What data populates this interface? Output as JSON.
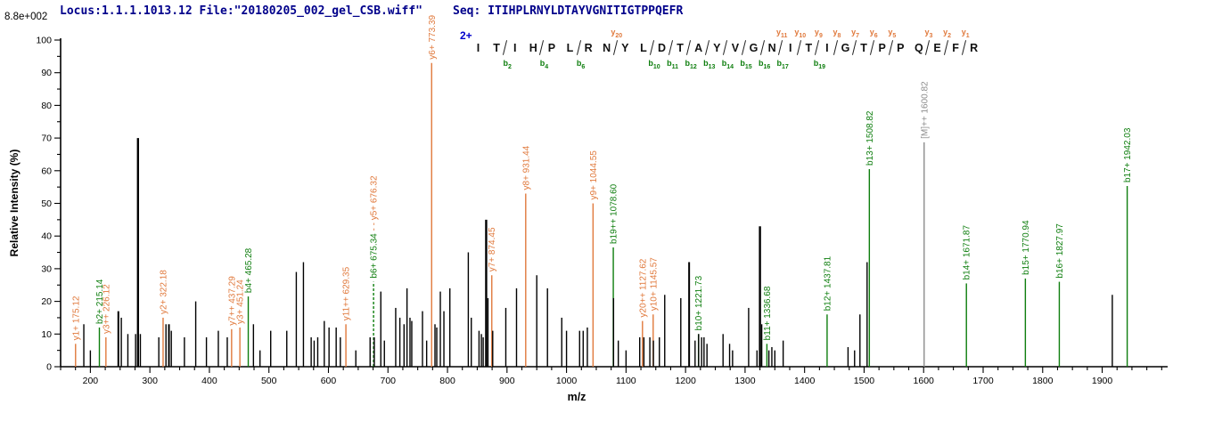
{
  "header": {
    "max_intensity": "8.8e+002",
    "locus_line": "Locus:1.1.1.1013.12 File:\"20180205_002_gel_CSB.wiff\"",
    "seq_label": "Seq:",
    "seq_value": "ITIHPLRNYLDTAYVGNITIGTPPQEFR"
  },
  "colors": {
    "y_ion": "#E0793C",
    "b_ion": "#0E7E0E",
    "precursor": "#8C8C8C",
    "peak": "#000000",
    "header_text": "#00008B",
    "charge_text": "#0000CC"
  },
  "sequence_panel": {
    "charge_label": "2+",
    "residues": [
      "I",
      "T",
      "I",
      "H",
      "P",
      "L",
      "R",
      "N",
      "Y",
      "L",
      "D",
      "T",
      "A",
      "Y",
      "V",
      "G",
      "N",
      "I",
      "T",
      "I",
      "G",
      "T",
      "P",
      "P",
      "Q",
      "E",
      "F",
      "R"
    ],
    "dividers": [
      {
        "after": 2,
        "b": "2"
      },
      {
        "after": 4,
        "b": "4"
      },
      {
        "after": 6,
        "b": "6"
      },
      {
        "after": 8,
        "y": "20"
      },
      {
        "after": 10,
        "b": "10"
      },
      {
        "after": 11,
        "b": "11"
      },
      {
        "after": 12,
        "b": "12"
      },
      {
        "after": 13,
        "b": "13"
      },
      {
        "after": 14,
        "b": "14"
      },
      {
        "after": 15,
        "b": "15"
      },
      {
        "after": 16,
        "b": "16"
      },
      {
        "after": 17,
        "b": "17",
        "y": "11"
      },
      {
        "after": 18,
        "y": "10"
      },
      {
        "after": 19,
        "b": "19",
        "y": "9"
      },
      {
        "after": 20,
        "y": "8"
      },
      {
        "after": 21,
        "y": "7"
      },
      {
        "after": 22,
        "y": "6"
      },
      {
        "after": 23,
        "y": "5"
      },
      {
        "after": 25,
        "y": "3"
      },
      {
        "after": 26,
        "y": "2"
      },
      {
        "after": 27,
        "y": "1"
      }
    ]
  },
  "chart_data": {
    "type": "bar",
    "subtype": "ms2-fragment-spectrum",
    "title": "",
    "xlabel": "m/z",
    "ylabel": "Relative  Intensity (%)",
    "x_range": [
      150,
      2010
    ],
    "y_range": [
      0,
      100
    ],
    "x_major_ticks": [
      200,
      300,
      400,
      500,
      600,
      700,
      800,
      900,
      1000,
      1100,
      1200,
      1300,
      1400,
      1500,
      1600,
      1700,
      1800,
      1900
    ],
    "x_minor_step": 25,
    "y_major_step": 10,
    "y_minor_step": 5,
    "grid": false,
    "labeled_peaks": [
      {
        "mz": 175.12,
        "pct": 7,
        "series": "y",
        "label": "y1+ 175.12"
      },
      {
        "mz": 215.14,
        "pct": 12,
        "series": "b",
        "label": "b2+ 215.14"
      },
      {
        "mz": 226.12,
        "pct": 9,
        "series": "y",
        "label": "y3++ 226.12"
      },
      {
        "mz": 322.18,
        "pct": 15,
        "series": "y",
        "label": "y2+ 322.18"
      },
      {
        "mz": 437.29,
        "pct": 11.5,
        "series": "y",
        "label": "y7++ 437.29"
      },
      {
        "mz": 451.24,
        "pct": 12,
        "series": "y",
        "label": "y3+ 451.24"
      },
      {
        "mz": 465.28,
        "pct": 21.5,
        "series": "b",
        "label": "b4+ 465.28"
      },
      {
        "mz": 629.35,
        "pct": 13,
        "series": "y",
        "label": "y11++ 629.35"
      },
      {
        "mz": 675.8,
        "pct": 26,
        "series": "b",
        "dashed": true,
        "label": "b6+ 675.34 - - y5+ 676.32",
        "label_parts": [
          {
            "text": "b6+ 675.34",
            "series": "b"
          },
          {
            "text": " - - ",
            "series": "y"
          },
          {
            "text": "y5+ 676.32",
            "series": "y"
          }
        ]
      },
      {
        "mz": 773.39,
        "pct": 93,
        "series": "y",
        "label": "y6+ 773.39"
      },
      {
        "mz": 874.45,
        "pct": 28,
        "series": "y",
        "label": "y7+ 874.45"
      },
      {
        "mz": 931.44,
        "pct": 53,
        "series": "y",
        "label": "y8+ 931.44"
      },
      {
        "mz": 1044.55,
        "pct": 50,
        "series": "y",
        "label": "y9+ 1044.55"
      },
      {
        "mz": 1078.6,
        "pct": 36.5,
        "series": "b",
        "label": "b19++ 1078.60"
      },
      {
        "mz": 1127.62,
        "pct": 14,
        "series": "y",
        "label": "y20++ 1127.62"
      },
      {
        "mz": 1145.57,
        "pct": 16,
        "series": "y",
        "label": "y10+ 1145.57"
      },
      {
        "mz": 1221.73,
        "pct": 10,
        "series": "b",
        "label": "b10+ 1221.73"
      },
      {
        "mz": 1336.68,
        "pct": 7,
        "series": "b",
        "label": "b11+ 1336.68"
      },
      {
        "mz": 1437.81,
        "pct": 16,
        "series": "b",
        "label": "b12+ 1437.81"
      },
      {
        "mz": 1508.82,
        "pct": 60.5,
        "series": "b",
        "label": "b13+ 1508.82"
      },
      {
        "mz": 1600.82,
        "pct": 68.7,
        "series": "precursor",
        "label": "[M]++ 1600.82"
      },
      {
        "mz": 1671.87,
        "pct": 25.5,
        "series": "b",
        "label": "b14+ 1671.87"
      },
      {
        "mz": 1770.94,
        "pct": 27,
        "series": "b",
        "label": "b15+ 1770.94"
      },
      {
        "mz": 1827.97,
        "pct": 26,
        "series": "b",
        "label": "b16+ 1827.97"
      },
      {
        "mz": 1942.03,
        "pct": 55.3,
        "series": "b",
        "label": "b17+ 1942.03"
      }
    ],
    "unlabeled_peaks": [
      [
        189,
        13
      ],
      [
        200,
        5
      ],
      [
        247,
        17,
        2
      ],
      [
        252,
        15
      ],
      [
        263,
        10
      ],
      [
        276,
        10
      ],
      [
        280,
        70,
        2.4
      ],
      [
        284,
        10
      ],
      [
        315,
        9
      ],
      [
        327,
        13
      ],
      [
        332,
        13,
        2
      ],
      [
        336,
        11
      ],
      [
        358,
        9
      ],
      [
        377,
        20
      ],
      [
        395,
        9
      ],
      [
        415,
        11
      ],
      [
        430,
        9
      ],
      [
        474,
        13
      ],
      [
        485,
        5
      ],
      [
        503,
        11
      ],
      [
        530,
        11
      ],
      [
        546,
        29
      ],
      [
        558,
        32
      ],
      [
        571,
        9
      ],
      [
        576,
        8
      ],
      [
        582,
        9
      ],
      [
        593,
        14
      ],
      [
        601,
        12
      ],
      [
        613,
        12
      ],
      [
        620,
        9
      ],
      [
        646,
        5
      ],
      [
        670,
        9
      ],
      [
        677,
        9
      ],
      [
        688,
        23
      ],
      [
        694,
        8
      ],
      [
        713,
        18
      ],
      [
        720,
        15
      ],
      [
        727,
        13
      ],
      [
        732,
        24
      ],
      [
        737,
        15
      ],
      [
        740,
        14
      ],
      [
        758,
        17
      ],
      [
        765,
        8
      ],
      [
        779,
        13
      ],
      [
        782,
        12
      ],
      [
        788,
        23
      ],
      [
        794,
        17
      ],
      [
        804,
        24
      ],
      [
        835,
        35
      ],
      [
        840,
        15
      ],
      [
        853,
        11
      ],
      [
        857,
        10
      ],
      [
        860,
        9
      ],
      [
        865,
        45,
        2.4
      ],
      [
        868,
        21
      ],
      [
        876,
        11
      ],
      [
        898,
        18
      ],
      [
        916,
        24
      ],
      [
        950,
        28
      ],
      [
        968,
        24
      ],
      [
        992,
        15
      ],
      [
        1000,
        11
      ],
      [
        1022,
        11
      ],
      [
        1028,
        11
      ],
      [
        1035,
        12
      ],
      [
        1079,
        21
      ],
      [
        1087,
        8
      ],
      [
        1100,
        5
      ],
      [
        1123,
        9
      ],
      [
        1130,
        9
      ],
      [
        1140,
        9
      ],
      [
        1146,
        8
      ],
      [
        1156,
        9
      ],
      [
        1165,
        22
      ],
      [
        1192,
        21
      ],
      [
        1206,
        32,
        2
      ],
      [
        1216,
        8
      ],
      [
        1222,
        10
      ],
      [
        1227,
        9
      ],
      [
        1231,
        9
      ],
      [
        1236,
        7
      ],
      [
        1263,
        10
      ],
      [
        1274,
        7
      ],
      [
        1279,
        5
      ],
      [
        1306,
        18
      ],
      [
        1320,
        5
      ],
      [
        1325,
        43,
        2.4
      ],
      [
        1328,
        13
      ],
      [
        1340,
        5
      ],
      [
        1345,
        6
      ],
      [
        1350,
        5
      ],
      [
        1364,
        8
      ],
      [
        1473,
        6
      ],
      [
        1484,
        5
      ],
      [
        1493,
        16
      ],
      [
        1505,
        32
      ],
      [
        1917,
        22
      ]
    ]
  }
}
